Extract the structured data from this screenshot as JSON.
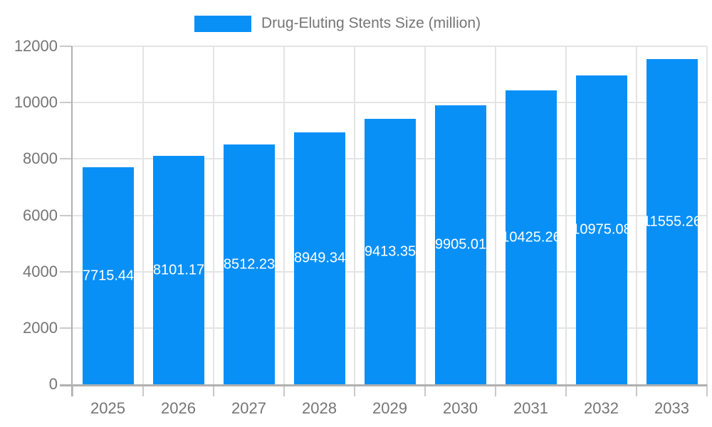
{
  "chart_data": {
    "type": "bar",
    "title": "Drug-Eluting Stents Size (million)",
    "legend": "Drug-Eluting Stents Size (million)",
    "legend_position": "top-center",
    "xlabel": "",
    "ylabel": "",
    "categories": [
      "2025",
      "2026",
      "2027",
      "2028",
      "2029",
      "2030",
      "2031",
      "2032",
      "2033"
    ],
    "series": [
      {
        "name": "Drug-Eluting Stents Size (million)",
        "values": [
          7715.44,
          8101.17,
          8512.23,
          8949.34,
          9413.35,
          9905.01,
          10425.26,
          10975.08,
          11555.26
        ]
      }
    ],
    "bar_labels": [
      "7715.44",
      "8101.17",
      "8512.23",
      "8949.34",
      "9413.35",
      "9905.01",
      "10425.26",
      "10975.08",
      "11555.26"
    ],
    "ylim": [
      0,
      12000
    ],
    "yticks": [
      0,
      2000,
      4000,
      6000,
      8000,
      10000,
      12000
    ],
    "ytick_labels": [
      "0",
      "2000",
      "4000",
      "6000",
      "8000",
      "10000",
      "12000"
    ],
    "grid": true,
    "colors": {
      "bar": "#0990f7",
      "bar_label_text": "#ffffff",
      "axis_text": "#757575",
      "grid_line": "#e4e4e4",
      "tick_line": "#c9c9c9",
      "axis_line": "#b0b0b0",
      "background": "#ffffff"
    }
  }
}
